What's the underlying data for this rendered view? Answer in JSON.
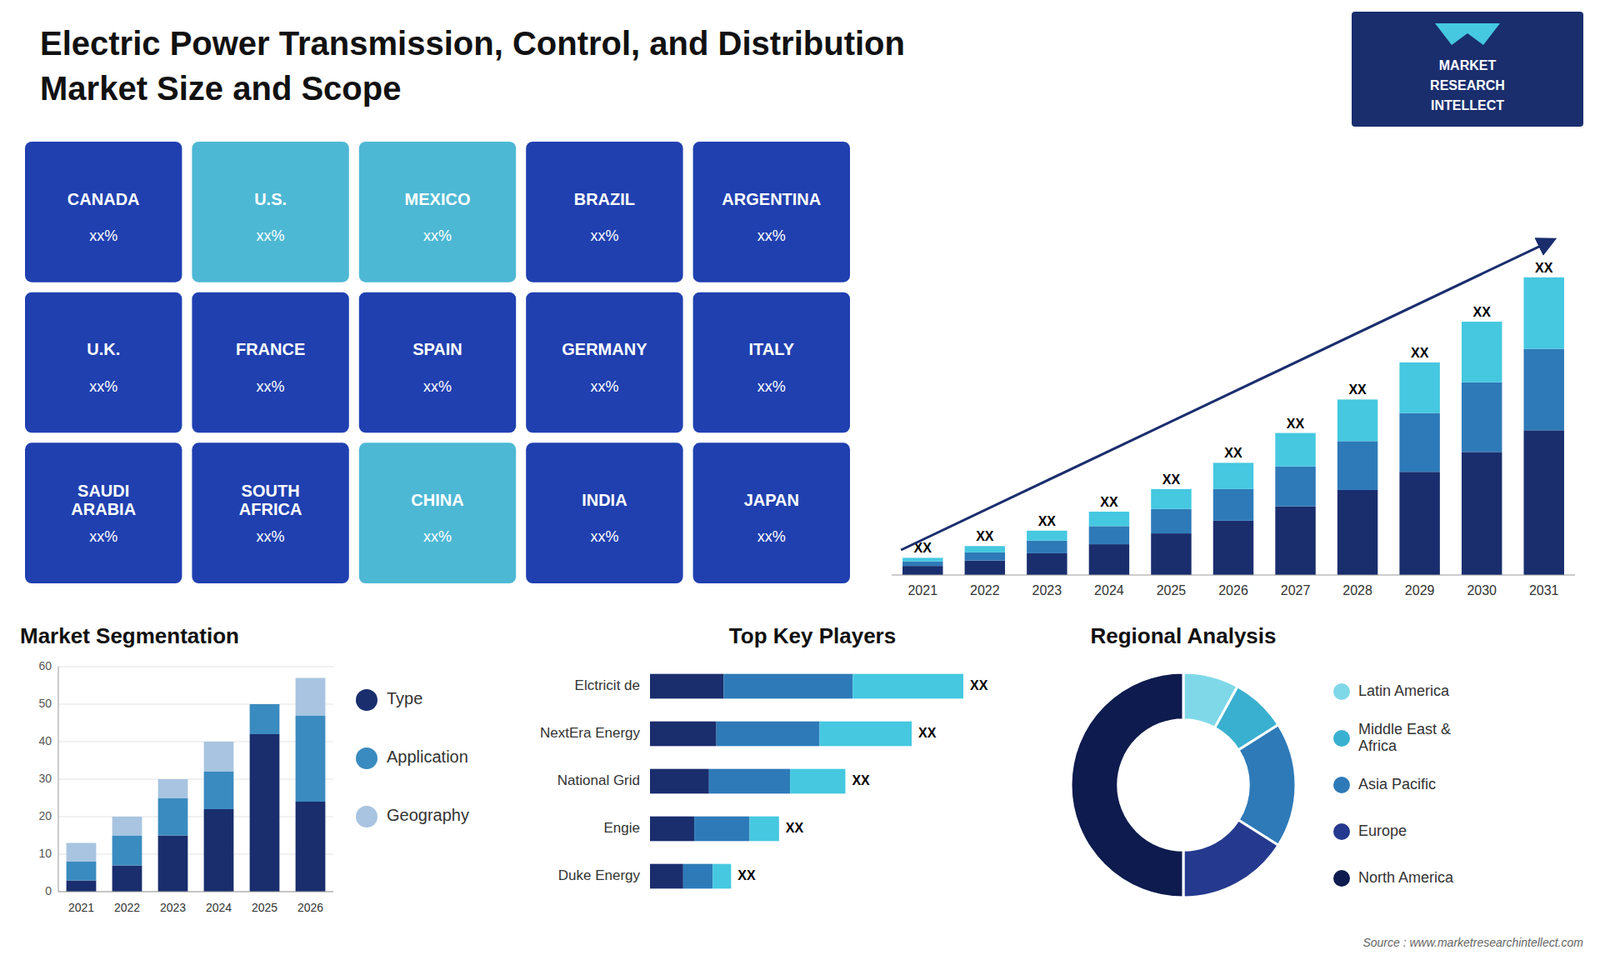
{
  "chart_data": [
    {
      "type": "bar",
      "stacked": true,
      "title": "Electric Power Transmission, Control, and Distribution",
      "subtitle": "Market Size and Scope",
      "categories": [
        "2021",
        "2022",
        "2023",
        "2024",
        "2025",
        "2026",
        "2027",
        "2028",
        "2029",
        "2030",
        "2031"
      ],
      "series": [
        {
          "color": "#1a2e6e",
          "values": [
            1.0,
            1.6,
            2.4,
            3.4,
            4.6,
            6.0,
            7.6,
            9.4,
            11.4,
            13.6,
            16.0
          ]
        },
        {
          "color": "#2e7ab8",
          "values": [
            0.5,
            0.9,
            1.4,
            2.0,
            2.7,
            3.5,
            4.4,
            5.4,
            6.5,
            7.7,
            9.0
          ]
        },
        {
          "color": "#45c8e0",
          "values": [
            0.4,
            0.7,
            1.1,
            1.6,
            2.2,
            2.9,
            3.7,
            4.6,
            5.6,
            6.7,
            7.9
          ]
        }
      ],
      "ylim": [
        0,
        46.06
      ],
      "tick_labels": "x",
      "annotations": [
        "XX",
        "XX",
        "XX",
        "XX",
        "XX",
        "XX",
        "XX",
        "XX",
        "XX",
        "XX",
        "XX"
      ],
      "logo": [
        "MARKET",
        "RESEARCH",
        "INTELLECT"
      ],
      "source": "Source : www.marketresearchintellect.com"
    },
    {
      "type": "map",
      "categories": [
        "CANADA",
        "U.S.",
        "MEXICO",
        "BRAZIL",
        "ARGENTINA",
        "U.K.",
        "FRANCE",
        "SPAIN",
        "GERMANY",
        "ITALY",
        "SAUDI\nARABIA",
        "SOUTH\nAFRICA",
        "CHINA",
        "INDIA",
        "JAPAN"
      ],
      "annotations": [
        "xx%",
        "xx%",
        "xx%",
        "xx%",
        "xx%",
        "xx%",
        "xx%",
        "xx%",
        "xx%",
        "xx%",
        "xx%",
        "xx%",
        "xx%",
        "xx%",
        "xx%"
      ],
      "colors": [
        "#2040b0",
        "#4db8d4",
        "#4db8d4",
        "#2040b0",
        "#2040b0",
        "#2040b0",
        "#2040b0",
        "#2040b0",
        "#2040b0",
        "#2040b0",
        "#2040b0",
        "#2040b0",
        "#4db8d4",
        "#2040b0",
        "#2040b0"
      ]
    },
    {
      "type": "bar",
      "stacked": true,
      "title": "Market Segmentation",
      "categories": [
        "2021",
        "2022",
        "2023",
        "2024",
        "2025",
        "2026"
      ],
      "series": [
        {
          "name": "Type",
          "color": "#1a2e6e",
          "values": [
            3,
            7,
            15,
            22,
            42,
            24
          ]
        },
        {
          "name": "Application",
          "color": "#3a8bbf",
          "values": [
            5,
            8,
            10,
            10,
            8,
            23
          ]
        },
        {
          "name": "Geography",
          "color": "#a8c4e0",
          "values": [
            5,
            5,
            5,
            8,
            0,
            10
          ]
        }
      ],
      "ylim": [
        0,
        60
      ],
      "yticks": [
        0,
        10,
        20,
        30,
        40,
        50,
        60
      ],
      "grid": true,
      "legend": "right"
    },
    {
      "type": "bar",
      "orientation": "horizontal",
      "stacked": true,
      "title": "Top Key Players",
      "categories": [
        "Elctricit de",
        "NextEra Energy",
        "National Grid",
        "Engie",
        "Duke Energy"
      ],
      "series": [
        {
          "color": "#1a2e6e",
          "values": [
            2.0,
            1.8,
            1.6,
            1.2,
            0.9
          ]
        },
        {
          "color": "#2e7ab8",
          "values": [
            3.5,
            2.8,
            2.2,
            1.5,
            0.8
          ]
        },
        {
          "color": "#45c8e0",
          "values": [
            3.0,
            2.5,
            1.5,
            0.8,
            0.5
          ]
        }
      ],
      "xlim": [
        0,
        10.625
      ],
      "tick_labels": "y",
      "annotations": [
        "XX",
        "XX",
        "XX",
        "XX",
        "XX"
      ]
    },
    {
      "type": "donut",
      "title": "Regional Analysis",
      "categories": [
        "Latin America",
        "Middle East &\nAfrica",
        "Asia Pacific",
        "Europe",
        "North America"
      ],
      "values": [
        8,
        8,
        18,
        16,
        50
      ],
      "colors": [
        "#7fd8e8",
        "#3ab0d0",
        "#2e7ab8",
        "#253a8e",
        "#0d1b4e"
      ],
      "legend": "right"
    }
  ]
}
